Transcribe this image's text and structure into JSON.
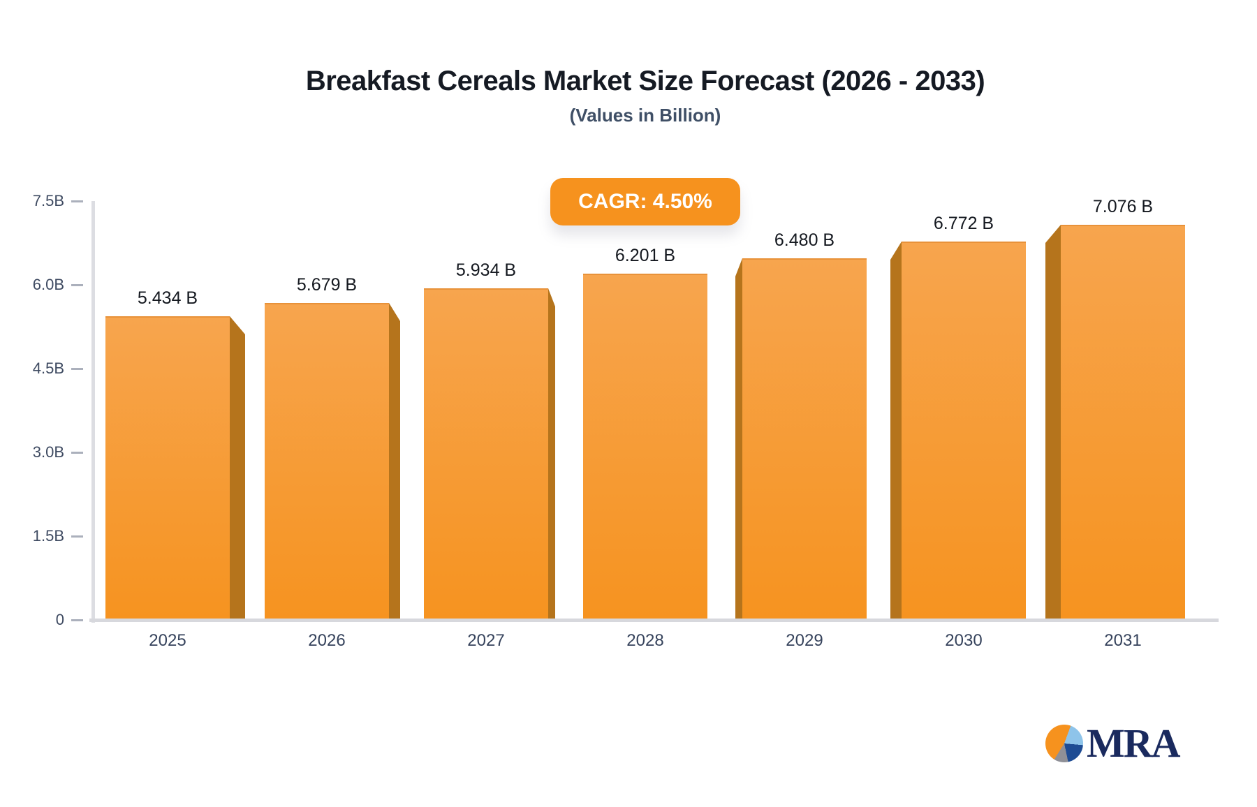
{
  "chart_data": {
    "type": "bar",
    "title": "Breakfast Cereals Market Size Forecast (2026 - 2033)",
    "subtitle": "(Values in Billion)",
    "categories": [
      "2025",
      "2026",
      "2027",
      "2028",
      "2029",
      "2030",
      "2031"
    ],
    "values": [
      5.434,
      5.679,
      5.934,
      6.201,
      6.48,
      6.772,
      7.076
    ],
    "bar_labels": [
      "5.434 B",
      "5.679 B",
      "5.934 B",
      "6.201 B",
      "6.480 B",
      "6.772 B",
      "7.076 B"
    ],
    "xlabel": "",
    "ylabel": "",
    "ylim": [
      0,
      7.5
    ],
    "y_ticks": [
      {
        "label": "7.5B",
        "value": 7.5
      },
      {
        "label": "6.0B",
        "value": 6.0
      },
      {
        "label": "4.5B",
        "value": 4.5
      },
      {
        "label": "3.0B",
        "value": 3.0
      },
      {
        "label": "1.5B",
        "value": 1.5
      },
      {
        "label": "0",
        "value": 0
      }
    ],
    "grid": false,
    "legend_position": "none",
    "colors": {
      "bar_face_top": "#f7a54e",
      "bar_face_bottom": "#f69320",
      "bar_face_edge": "#e8923a",
      "bar_side": "#b5741c",
      "axis_line": "#dcdde2",
      "baseline": "#d7d8dd",
      "tick_dash": "#abb0bc",
      "tick_label": "#3e4a61",
      "x_label": "#36435c",
      "value_label": "#14181f"
    }
  },
  "cagr_badge": {
    "label": "CAGR: 4.50%",
    "bg": "#f6921e",
    "text_color": "#ffffff"
  },
  "logo": {
    "text": "MRA",
    "text_color": "#1a2a5e",
    "pie_icon": "pie-chart-icon",
    "pie_slices": [
      {
        "color": "#f6921e",
        "from": 0,
        "to": 20
      },
      {
        "color": "#8ec4ea",
        "from": 20,
        "to": 95
      },
      {
        "color": "#1e4c94",
        "from": 95,
        "to": 168
      },
      {
        "color": "#8f9097",
        "from": 168,
        "to": 212
      },
      {
        "color": "#f6921e",
        "from": 212,
        "to": 360
      }
    ]
  }
}
